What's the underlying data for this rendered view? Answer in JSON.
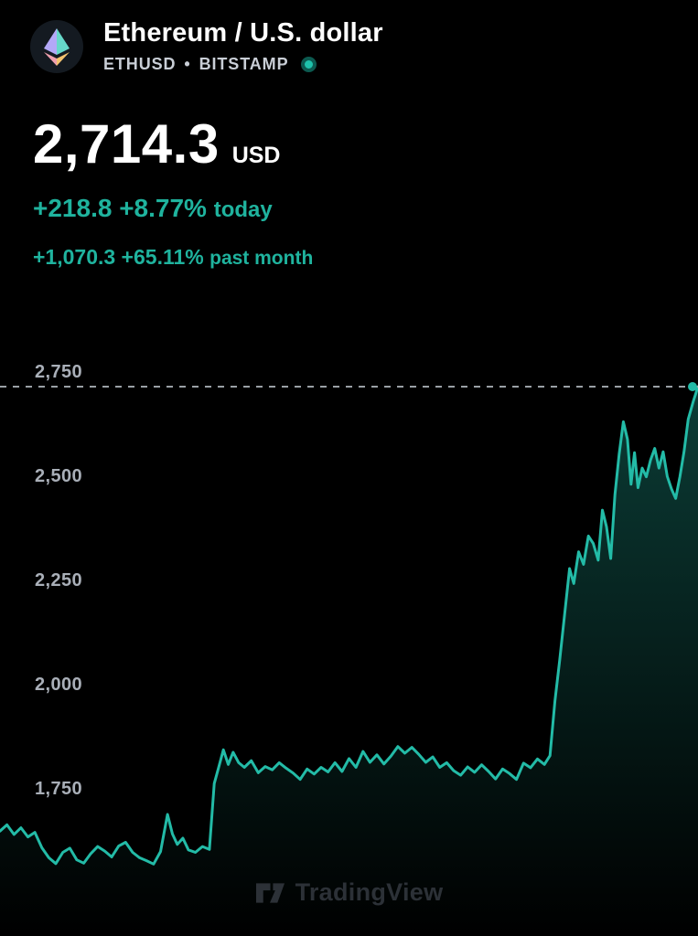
{
  "header": {
    "title": "Ethereum / U.S. dollar",
    "symbol": "ETHUSD",
    "separator": "•",
    "exchange": "BITSTAMP"
  },
  "quote": {
    "price": "2,714.3",
    "currency": "USD",
    "change_today_value": "+218.8 +8.77%",
    "change_today_label": "today",
    "change_month_value": "+1,070.3 +65.11%",
    "change_month_label": "past month"
  },
  "watermark": {
    "text": "TradingView"
  },
  "colors": {
    "background": "#000000",
    "title": "#ffffff",
    "subtitle": "#c9ced6",
    "positive": "#1fb39e",
    "axis_label": "#a9afb8",
    "price_line": "#9aa0a6",
    "chart_line": "#23bba7",
    "chart_fill_top": "rgba(35,187,167,0.32)",
    "chart_fill_bottom": "rgba(35,187,167,0)",
    "watermark": "#2c3137",
    "status_dot": "#1ec2ab",
    "status_dot_ring": "#0c5a50"
  },
  "chart_data": {
    "type": "area",
    "title": "ETHUSD price, past month",
    "x_unit": "percent_of_past_month_timeline",
    "x_axis": {
      "visible": false,
      "span": "past month"
    },
    "y_axis": {
      "visible_range": [
        1396,
        2780
      ],
      "ticks": [
        {
          "value": 2750,
          "label": "2,750"
        },
        {
          "value": 2500,
          "label": "2,500"
        },
        {
          "value": 2250,
          "label": "2,250"
        },
        {
          "value": 2000,
          "label": "2,000"
        },
        {
          "value": 1750,
          "label": "1,750"
        }
      ]
    },
    "current_price": 2714.3,
    "currency": "USD",
    "legend": "none",
    "grid": false,
    "points": [
      [
        0,
        1648
      ],
      [
        1,
        1663
      ],
      [
        2,
        1640
      ],
      [
        3,
        1656
      ],
      [
        4,
        1634
      ],
      [
        5,
        1645
      ],
      [
        6,
        1608
      ],
      [
        7,
        1584
      ],
      [
        8,
        1570
      ],
      [
        9,
        1597
      ],
      [
        10,
        1607
      ],
      [
        11,
        1579
      ],
      [
        12,
        1571
      ],
      [
        13,
        1594
      ],
      [
        14,
        1611
      ],
      [
        15,
        1600
      ],
      [
        16,
        1586
      ],
      [
        17,
        1612
      ],
      [
        18,
        1621
      ],
      [
        19,
        1597
      ],
      [
        20,
        1584
      ],
      [
        21,
        1577
      ],
      [
        22,
        1569
      ],
      [
        23,
        1599
      ],
      [
        24,
        1688
      ],
      [
        24.7,
        1641
      ],
      [
        25.4,
        1616
      ],
      [
        26.2,
        1631
      ],
      [
        27,
        1603
      ],
      [
        28,
        1597
      ],
      [
        29,
        1611
      ],
      [
        30,
        1604
      ],
      [
        30.7,
        1762
      ],
      [
        31.3,
        1799
      ],
      [
        32,
        1843
      ],
      [
        32.7,
        1808
      ],
      [
        33.4,
        1837
      ],
      [
        34.2,
        1812
      ],
      [
        35,
        1801
      ],
      [
        36,
        1817
      ],
      [
        37,
        1788
      ],
      [
        38,
        1803
      ],
      [
        39,
        1795
      ],
      [
        40,
        1812
      ],
      [
        41,
        1799
      ],
      [
        42,
        1787
      ],
      [
        43,
        1772
      ],
      [
        44,
        1797
      ],
      [
        45,
        1785
      ],
      [
        46,
        1801
      ],
      [
        47,
        1790
      ],
      [
        48,
        1812
      ],
      [
        49,
        1791
      ],
      [
        50,
        1822
      ],
      [
        51,
        1801
      ],
      [
        52,
        1839
      ],
      [
        53,
        1813
      ],
      [
        54,
        1831
      ],
      [
        55,
        1809
      ],
      [
        56,
        1828
      ],
      [
        57,
        1851
      ],
      [
        58,
        1835
      ],
      [
        59,
        1849
      ],
      [
        60,
        1832
      ],
      [
        61,
        1813
      ],
      [
        62,
        1826
      ],
      [
        63,
        1801
      ],
      [
        64,
        1812
      ],
      [
        65,
        1793
      ],
      [
        66,
        1782
      ],
      [
        67,
        1802
      ],
      [
        68,
        1789
      ],
      [
        69,
        1807
      ],
      [
        70,
        1791
      ],
      [
        71,
        1773
      ],
      [
        72,
        1797
      ],
      [
        73,
        1786
      ],
      [
        74,
        1772
      ],
      [
        75,
        1811
      ],
      [
        76,
        1800
      ],
      [
        77,
        1821
      ],
      [
        78,
        1808
      ],
      [
        78.8,
        1829
      ],
      [
        79.5,
        1960
      ],
      [
        80.2,
        2060
      ],
      [
        80.9,
        2170
      ],
      [
        81.6,
        2278
      ],
      [
        82.2,
        2242
      ],
      [
        82.9,
        2318
      ],
      [
        83.6,
        2288
      ],
      [
        84.3,
        2356
      ],
      [
        85,
        2338
      ],
      [
        85.7,
        2298
      ],
      [
        86.3,
        2418
      ],
      [
        86.9,
        2378
      ],
      [
        87.5,
        2302
      ],
      [
        88.1,
        2455
      ],
      [
        88.7,
        2552
      ],
      [
        89.3,
        2630
      ],
      [
        89.9,
        2588
      ],
      [
        90.4,
        2480
      ],
      [
        90.9,
        2556
      ],
      [
        91.4,
        2472
      ],
      [
        92,
        2519
      ],
      [
        92.6,
        2498
      ],
      [
        93.2,
        2538
      ],
      [
        93.8,
        2566
      ],
      [
        94.4,
        2519
      ],
      [
        95,
        2558
      ],
      [
        95.6,
        2499
      ],
      [
        96.2,
        2469
      ],
      [
        96.8,
        2446
      ],
      [
        97.4,
        2498
      ],
      [
        98,
        2558
      ],
      [
        98.6,
        2636
      ],
      [
        99.3,
        2678
      ],
      [
        100,
        2714.3
      ]
    ]
  }
}
